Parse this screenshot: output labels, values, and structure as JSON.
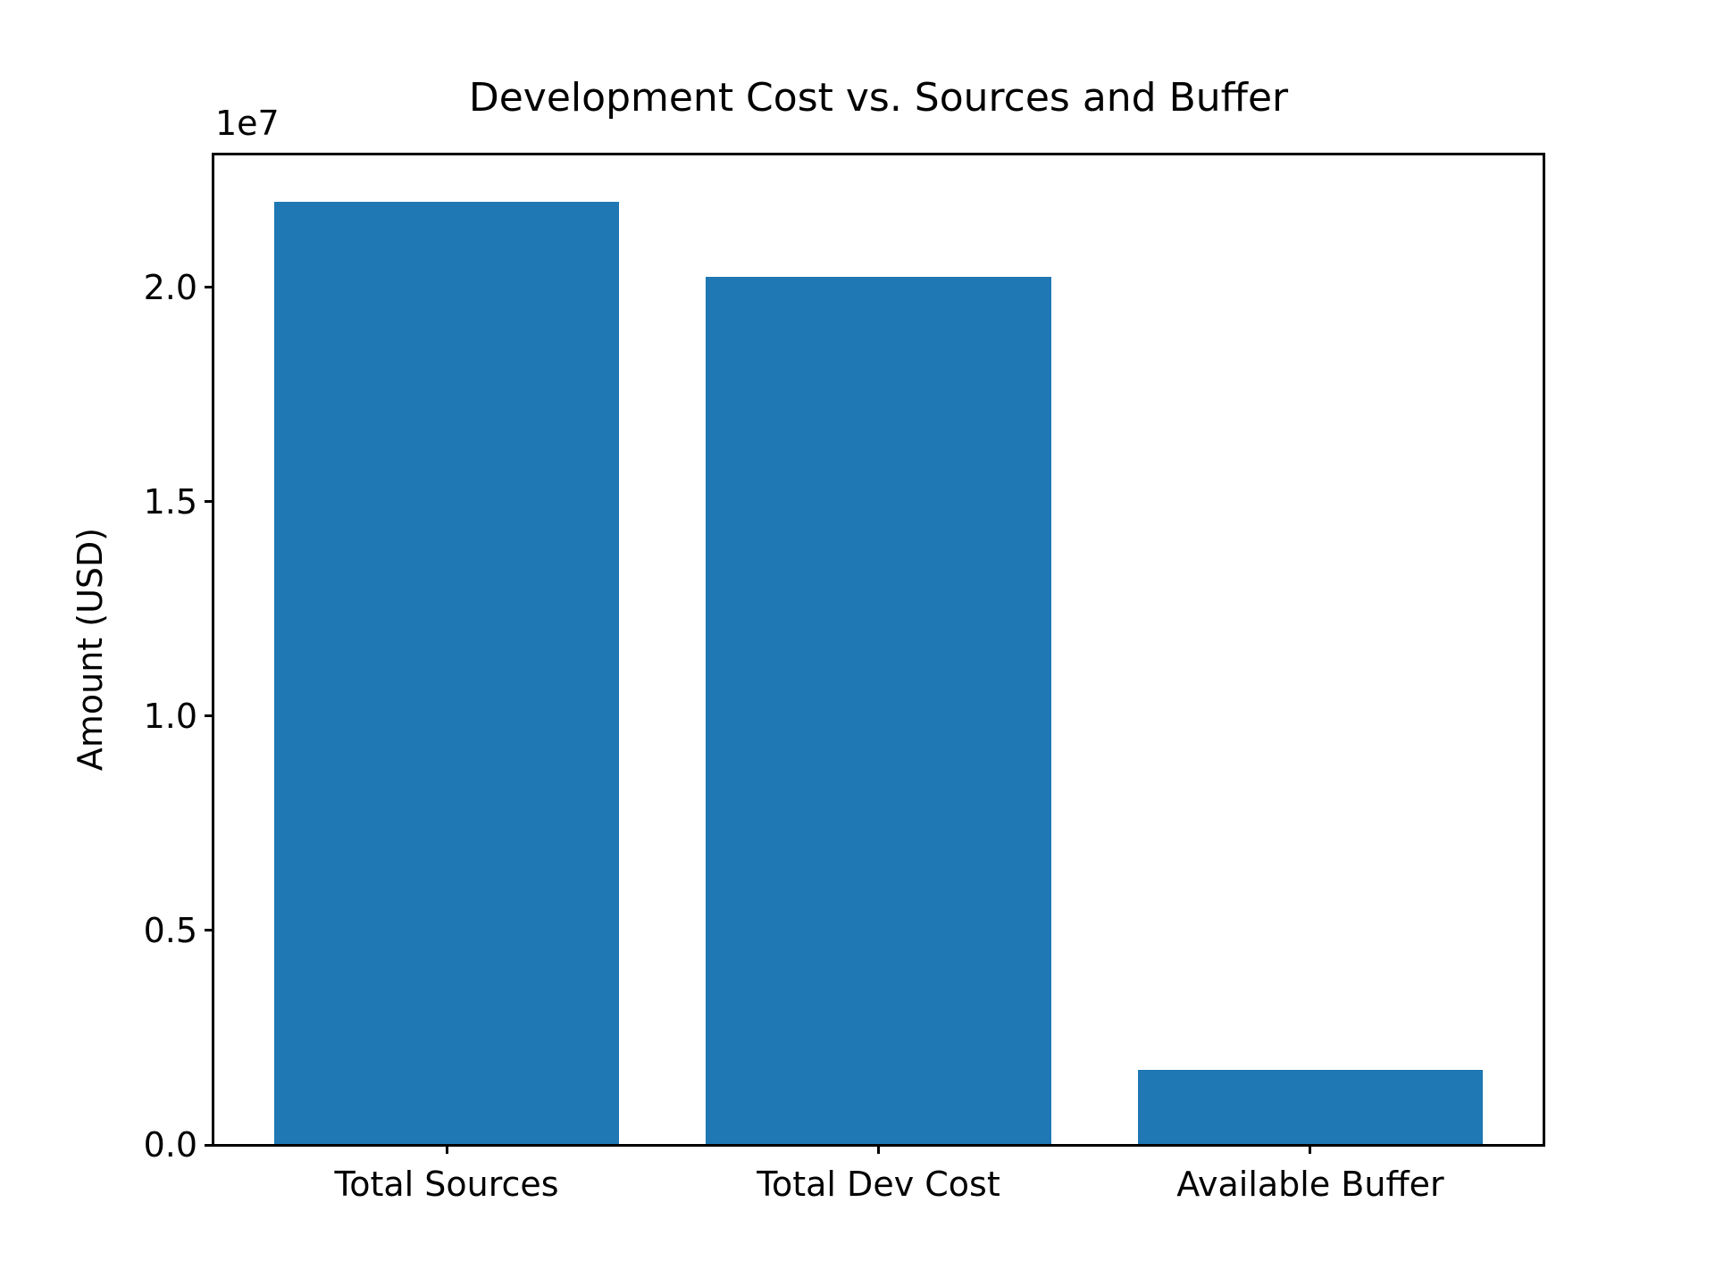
{
  "chart_data": {
    "type": "bar",
    "title": "Development Cost vs. Sources and Buffer",
    "categories": [
      "Total Sources",
      "Total Dev Cost",
      "Available Buffer"
    ],
    "values": [
      22000000,
      20250000,
      1750000
    ],
    "xlabel": "",
    "ylabel": "Amount (USD)",
    "ylim": [
      0,
      23100000
    ],
    "yticks": [
      0,
      5000000,
      10000000,
      15000000,
      20000000
    ],
    "ytick_labels": [
      "0.0",
      "0.5",
      "1.0",
      "1.5",
      "2.0"
    ],
    "offset_text": "1e7",
    "bar_color": "#1f77b4",
    "bar_width_fraction": 0.8,
    "xlim": [
      -0.54,
      2.54
    ],
    "grid": false,
    "legend_position": "none",
    "background_color": "#ffffff",
    "text_color": "#000000"
  }
}
